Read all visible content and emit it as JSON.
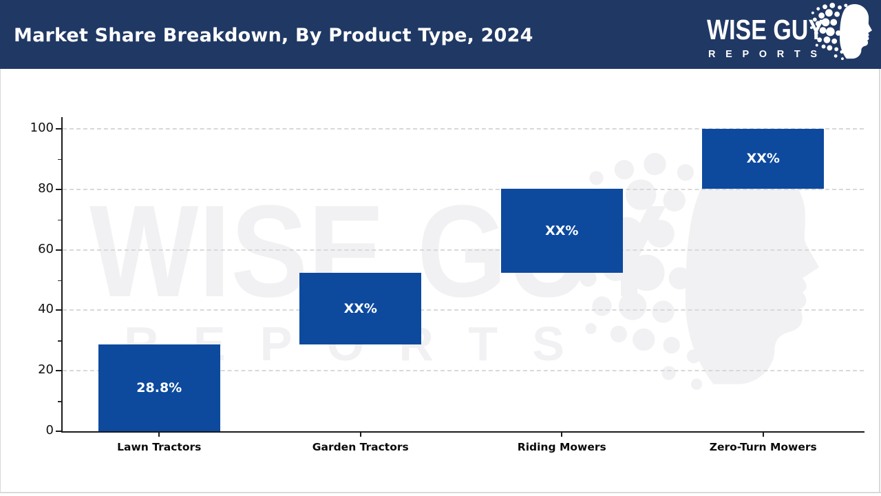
{
  "header": {
    "title": "Market Share Breakdown, By Product Type, 2024",
    "logo": {
      "name": "WISE GUY",
      "tagline": "REPORTS"
    }
  },
  "watermark": {
    "name": "WISE GUY",
    "tagline": "REPORTS"
  },
  "chart_data": {
    "type": "bar",
    "variant": "waterfall",
    "title": "Market Share Breakdown, By Product Type, 2024",
    "categories": [
      "Lawn Tractors",
      "Garden Tractors",
      "Riding Mowers",
      "Zero-Turn Mowers"
    ],
    "segments": [
      {
        "category": "Lawn Tractors",
        "start": 0,
        "end": 28.8,
        "label": "28.8%"
      },
      {
        "category": "Garden Tractors",
        "start": 28.8,
        "end": 52.4,
        "label": "XX%"
      },
      {
        "category": "Riding Mowers",
        "start": 52.4,
        "end": 80.2,
        "label": "XX%"
      },
      {
        "category": "Zero-Turn Mowers",
        "start": 80.2,
        "end": 100,
        "label": "XX%"
      }
    ],
    "xlabel": "",
    "ylabel": "",
    "ylim": [
      0,
      105
    ],
    "yticks": [
      0,
      20,
      40,
      60,
      80,
      100
    ],
    "grid": "horizontal-dashed",
    "legend": "none",
    "bar_color": "#0d4a9e",
    "bar_label_color": "#ffffff"
  },
  "colors": {
    "header_bg": "#203864",
    "bar": "#0d4a9e",
    "watermark": "#f1f1f3",
    "axis": "#1a1a1a",
    "grid": "#d8d8d8",
    "frame": "#d9d9d9"
  }
}
